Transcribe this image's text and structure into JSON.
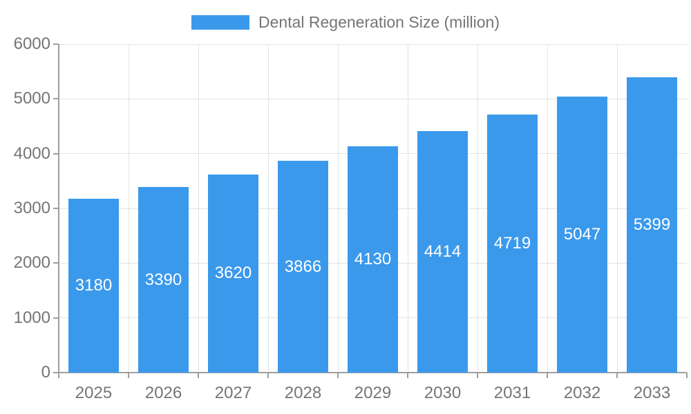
{
  "legend": {
    "swatch_color": "#3B99EC"
  },
  "chart_data": {
    "type": "bar",
    "title": "Dental Regeneration Size (million)",
    "categories": [
      "2025",
      "2026",
      "2027",
      "2028",
      "2029",
      "2030",
      "2031",
      "2032",
      "2033"
    ],
    "series": [
      {
        "name": "Dental Regeneration Size (million)",
        "values": [
          3180,
          3390,
          3620,
          3866,
          4130,
          4414,
          4719,
          5047,
          5399
        ]
      }
    ],
    "bar_labels": [
      "3180",
      "3390",
      "3620",
      "3866",
      "4130",
      "4414",
      "4719",
      "5047",
      "5399"
    ],
    "xlabel": "",
    "ylabel": "",
    "ylim": [
      0,
      6000
    ],
    "y_ticks": [
      0,
      1000,
      2000,
      3000,
      4000,
      5000,
      6000
    ],
    "y_tick_labels": [
      "0",
      "1000",
      "2000",
      "3000",
      "4000",
      "5000",
      "6000"
    ],
    "grid": true,
    "legend_position": "top-center",
    "colors": {
      "bar": "#3B99EC",
      "bar_label": "#FFFFFF",
      "axis_text": "#757575",
      "axis_line": "#9E9E9E",
      "gridline": "#E3E3E3",
      "background": "#FFFFFF"
    }
  }
}
